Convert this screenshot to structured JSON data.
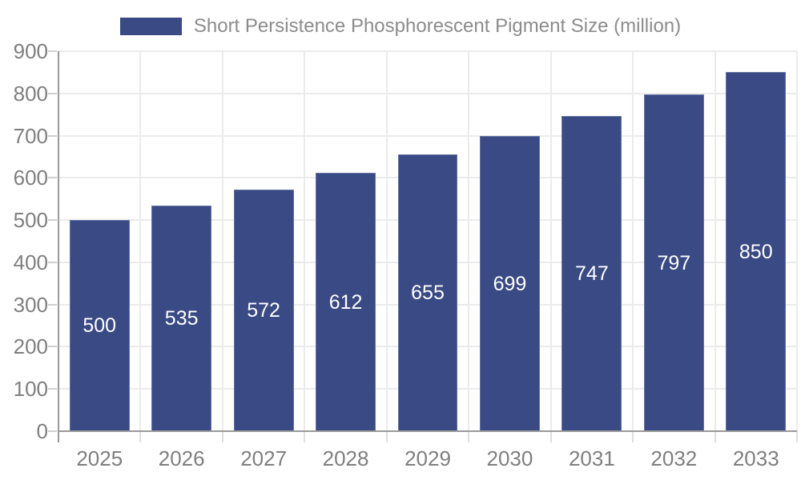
{
  "legend": {
    "label": "Short Persistence Phosphorescent Pigment Size (million)"
  },
  "colors": {
    "bar": "#394a85",
    "bar_border": "#6574a3",
    "grid": "#ebebeb",
    "axis_line": "#9a9a9a",
    "tick_mark": "#cfcfcf",
    "axis_text": "#7f7f7f",
    "legend_text": "#8c8c8c",
    "value_label_text": "#ffffff",
    "background": "#ffffff"
  },
  "chart_data": {
    "type": "bar",
    "title": "Short Persistence Phosphorescent Pigment Size (million)",
    "categories": [
      "2025",
      "2026",
      "2027",
      "2028",
      "2029",
      "2030",
      "2031",
      "2032",
      "2033"
    ],
    "values": [
      500,
      535,
      572,
      612,
      655,
      699,
      747,
      797,
      850
    ],
    "xlabel": "",
    "ylabel": "",
    "ylim": [
      0,
      900
    ],
    "ytick_step": 100,
    "ytick_labels": [
      "0",
      "100",
      "200",
      "300",
      "400",
      "500",
      "600",
      "700",
      "800",
      "900"
    ],
    "grid": true,
    "legend_position": "top-center",
    "value_labels": "inside-middle"
  }
}
